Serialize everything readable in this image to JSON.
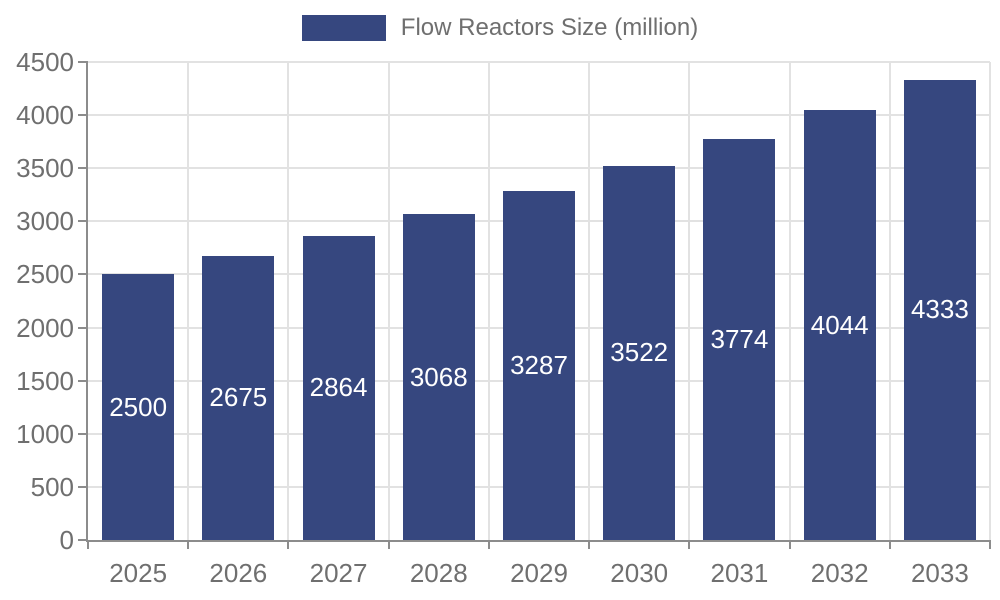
{
  "legend": {
    "label": "Flow Reactors Size (million)"
  },
  "chart_data": {
    "type": "bar",
    "title": "",
    "series_name": "Flow Reactors Size (million)",
    "categories": [
      "2025",
      "2026",
      "2027",
      "2028",
      "2029",
      "2030",
      "2031",
      "2032",
      "2033"
    ],
    "values": [
      2500,
      2675,
      2864,
      3068,
      3287,
      3522,
      3774,
      4044,
      4333
    ],
    "value_labels": [
      "2500",
      "2675",
      "2864",
      "3068",
      "3287",
      "3522",
      "3774",
      "4044",
      "4333"
    ],
    "xlabel": "",
    "ylabel": "",
    "ylim": [
      0,
      4500
    ],
    "ytick_step": 500,
    "ytick_labels": [
      "0",
      "500",
      "1000",
      "1500",
      "2000",
      "2500",
      "3000",
      "3500",
      "4000",
      "4500"
    ],
    "grid": "horizontal-and-vertical",
    "legend_position": "top-center",
    "colors": {
      "bar": "#36477f",
      "axis": "#8c8c8c",
      "grid": "#e2e2e2",
      "tick_label": "#6f6f6f",
      "legend_text": "#6f6f6f",
      "value_label": "#ffffff",
      "background": "#ffffff"
    }
  }
}
